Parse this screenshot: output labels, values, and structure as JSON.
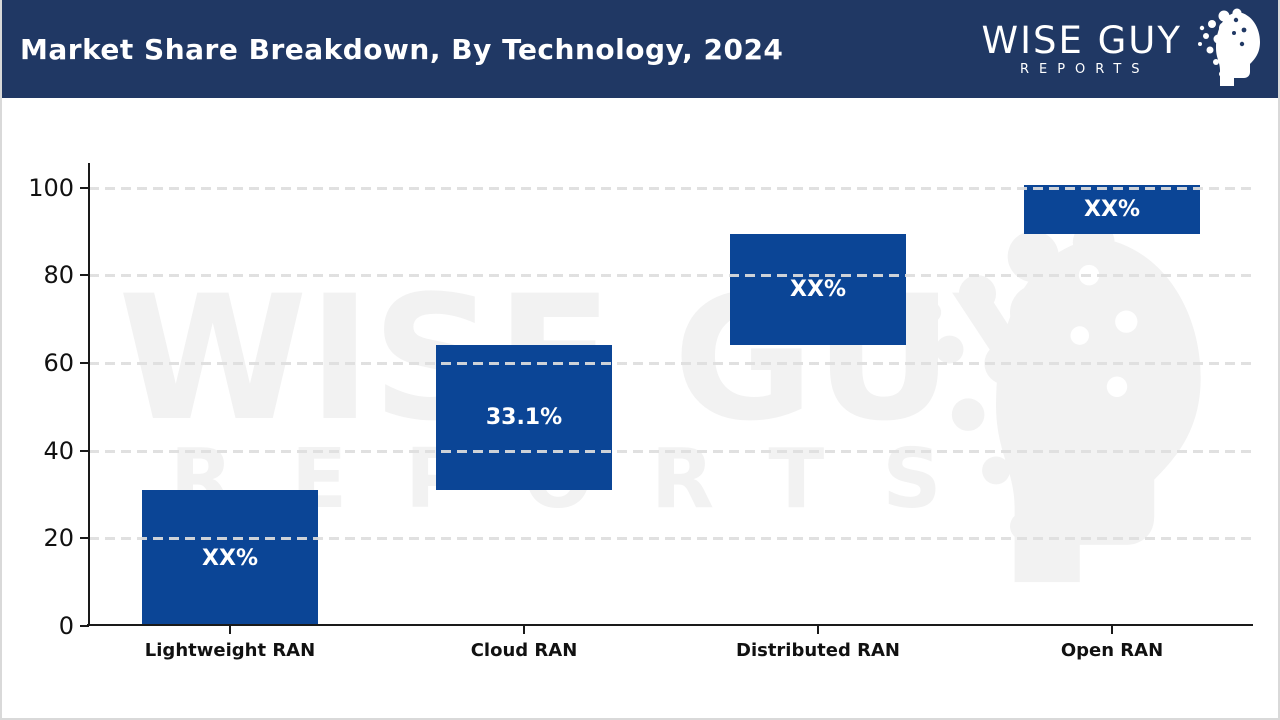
{
  "header": {
    "title": "Market Share Breakdown, By Technology, 2024",
    "logo": {
      "line1": "WISE GUY",
      "line2": "REPORTS"
    }
  },
  "watermark": {
    "line1": "WISE GUY",
    "line2": "REPORTS"
  },
  "colors": {
    "header_bg": "#203864",
    "header_text": "#ffffff",
    "bar": "#0b4596",
    "bar_label": "#ffffff",
    "grid": "#dedede",
    "axis": "#1a1a1a",
    "tick_text": "#111111",
    "watermark": "#f2f2f2",
    "edge_border": "#d9d9d9"
  },
  "chart_data": {
    "type": "bar",
    "subtype": "floating-range-waterfall",
    "title": "Market Share Breakdown, By Technology, 2024",
    "categories": [
      "Lightweight RAN",
      "Cloud RAN",
      "Distributed RAN",
      "Open RAN"
    ],
    "bars": [
      {
        "category": "Lightweight RAN",
        "start": 0,
        "end": 31,
        "label": "XX%"
      },
      {
        "category": "Cloud RAN",
        "start": 31,
        "end": 64.1,
        "label": "33.1%"
      },
      {
        "category": "Distributed RAN",
        "start": 64.1,
        "end": 89.5,
        "label": "XX%"
      },
      {
        "category": "Open RAN",
        "start": 89.4,
        "end": 100.5,
        "label": "XX%"
      }
    ],
    "xlabel": "",
    "ylabel": "",
    "yticks": [
      0,
      20,
      40,
      60,
      80,
      100
    ],
    "ylim": [
      0,
      105
    ],
    "grid": "dashed-horizontal",
    "legend": "none"
  }
}
